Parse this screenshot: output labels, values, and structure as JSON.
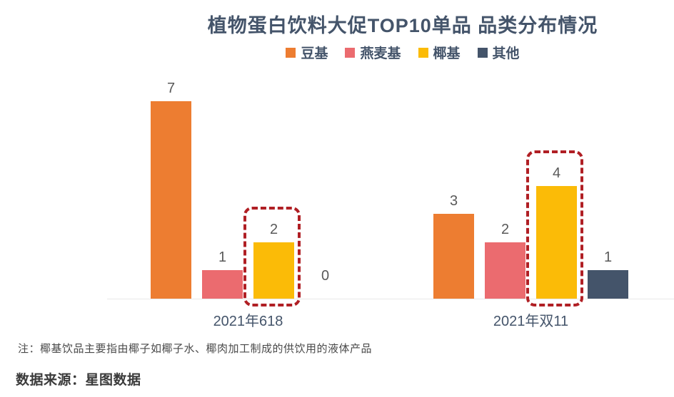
{
  "title": "植物蛋白饮料大促TOP10单品 品类分布情况",
  "legend": [
    {
      "label": "豆基",
      "color": "#ED7D31"
    },
    {
      "label": "燕麦基",
      "color": "#EB6B6F"
    },
    {
      "label": "椰基",
      "color": "#FBBB07"
    },
    {
      "label": "其他",
      "color": "#44546A"
    }
  ],
  "chart_data": {
    "type": "bar",
    "title": "植物蛋白饮料大促TOP10单品 品类分布情况",
    "categories": [
      "2021年618",
      "2021年双11"
    ],
    "series": [
      {
        "name": "豆基",
        "color": "#ED7D31",
        "values": [
          7,
          3
        ]
      },
      {
        "name": "燕麦基",
        "color": "#EB6B6F",
        "values": [
          1,
          2
        ]
      },
      {
        "name": "椰基",
        "color": "#FBBB07",
        "values": [
          2,
          4
        ]
      },
      {
        "name": "其他",
        "color": "#44546A",
        "values": [
          0,
          1
        ]
      }
    ],
    "ylim": [
      0,
      7.5
    ],
    "grid": false,
    "legend_position": "top",
    "data_labels": true,
    "highlight": {
      "series": "椰基",
      "style": "dashed-box",
      "color": "#B01F24"
    }
  },
  "note": "注：椰基饮品主要指由椰子如椰子水、椰肉加工制成的供饮用的液体产品",
  "source": "数据来源：星图数据",
  "colors": {
    "title_text": "#44546A",
    "value_label_text": "#595959",
    "axis_line": "#E8E8E8",
    "highlight_border": "#B01F24"
  }
}
